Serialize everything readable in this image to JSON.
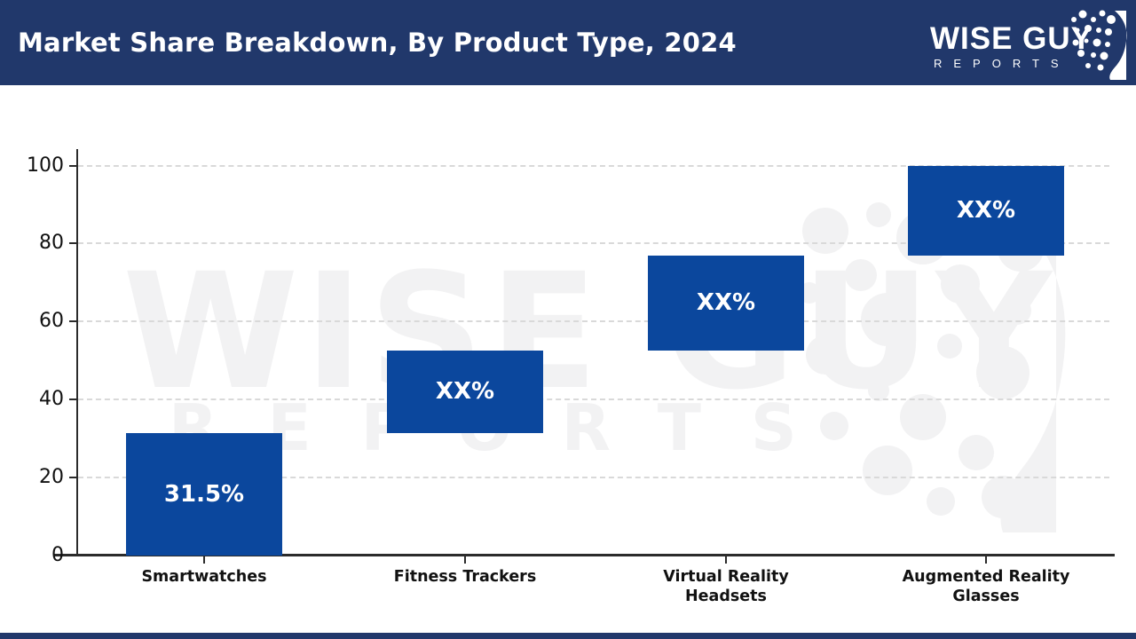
{
  "header": {
    "title": "Market Share Breakdown, By Product Type, 2024",
    "logo": {
      "name": "WISE GUY",
      "subtitle": "REPORTS",
      "icon": "dotted-head-profile-icon"
    },
    "bg_color": "#21386b"
  },
  "watermark": {
    "line1": "WISE GUY",
    "line2": "REPORTS"
  },
  "chart_data": {
    "type": "bar",
    "subtype": "floating-waterfall",
    "title": "Market Share Breakdown, By Product Type, 2024",
    "categories": [
      "Smartwatches",
      "Fitness Trackers",
      "Virtual Reality Headsets",
      "Augmented Reality Glasses"
    ],
    "segments": [
      {
        "start": 0,
        "end": 31.5,
        "label": "31.5%"
      },
      {
        "start": 31.5,
        "end": 52.5,
        "label": "XX%"
      },
      {
        "start": 52.5,
        "end": 77,
        "label": "XX%"
      },
      {
        "start": 77,
        "end": 100,
        "label": "XX%"
      }
    ],
    "xlabel": "",
    "ylabel": "",
    "ylim": [
      0,
      100
    ],
    "yticks": [
      0,
      20,
      40,
      60,
      80,
      100
    ],
    "grid": "horizontal-dashed",
    "legend": "none",
    "bar_color": "#0b479d",
    "bar_label_color": "#ffffff",
    "axis_color": "#2b2b2b",
    "grid_color": "#d9d9d9"
  },
  "footer": {
    "bg_color": "#21386b"
  }
}
